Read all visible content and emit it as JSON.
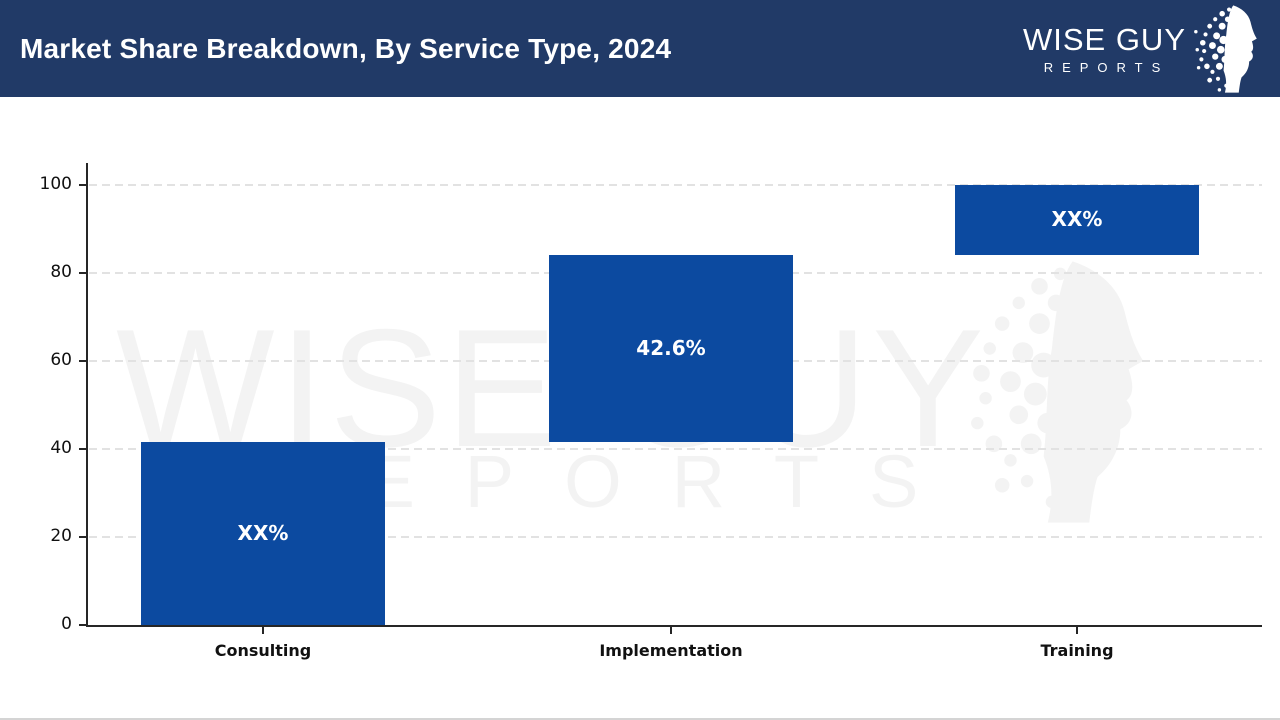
{
  "header": {
    "title": "Market Share Breakdown, By Service Type, 2024",
    "logo": {
      "line1": "WISE GUY",
      "line2": "REPORTS"
    }
  },
  "watermark": {
    "line1": "WISE GUY",
    "line2": "REPORTS"
  },
  "colors": {
    "header_bg": "#213a67",
    "bar": "#0c4aa0",
    "axis": "#262626",
    "grid": "#e2e2e2",
    "watermark": "#f3f3f3",
    "bar_label_text": "#ffffff",
    "tick_text": "#111111"
  },
  "chart_data": {
    "type": "bar",
    "subtype": "waterfall",
    "title": "Market Share Breakdown, By Service Type, 2024",
    "categories": [
      "Consulting",
      "Implementation",
      "Training"
    ],
    "segments": [
      {
        "category": "Consulting",
        "from": 0,
        "to": 41.5,
        "label": "XX%"
      },
      {
        "category": "Implementation",
        "from": 41.5,
        "to": 84.1,
        "label": "42.6%"
      },
      {
        "category": "Training",
        "from": 84.1,
        "to": 100,
        "label": "XX%"
      }
    ],
    "ylim": [
      0,
      100
    ],
    "yticks": [
      0,
      20,
      40,
      60,
      80,
      100
    ],
    "grid": "horizontal-dashed",
    "legend": "none",
    "bar_color": "#0c4aa0"
  }
}
